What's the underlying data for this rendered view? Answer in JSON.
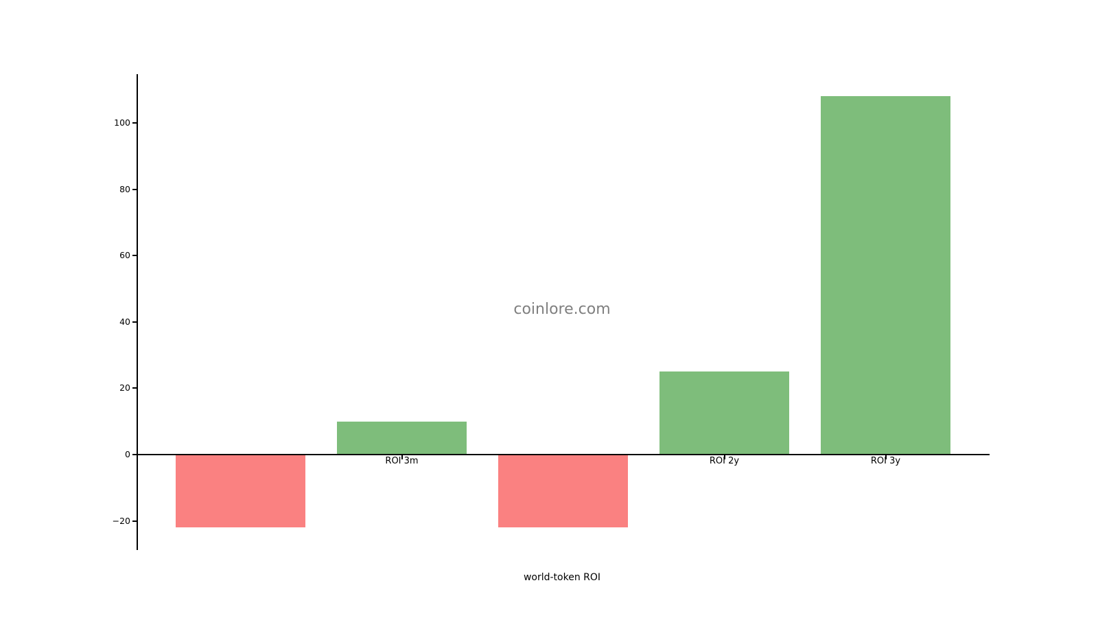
{
  "watermark": {
    "text": "coinlore.com",
    "color": "#7f7f7f"
  },
  "chart_data": {
    "type": "bar",
    "title": "",
    "xlabel": "world-token ROI",
    "ylabel": "",
    "categories": [
      "",
      "ROI 3m",
      "",
      "ROI 2y",
      "ROI 3y"
    ],
    "values": [
      -22,
      10,
      -22,
      25,
      108
    ],
    "positive_color": "#7ebd7b",
    "negative_color": "#fa8181",
    "yticks": [
      -20,
      0,
      20,
      40,
      60,
      80,
      100
    ],
    "ylim": [
      -28.8,
      114.7
    ],
    "grid": false,
    "legend_position": "none",
    "axis_color": "#000000",
    "tick_label_color": "#000000",
    "background_color": "#ffffff"
  }
}
